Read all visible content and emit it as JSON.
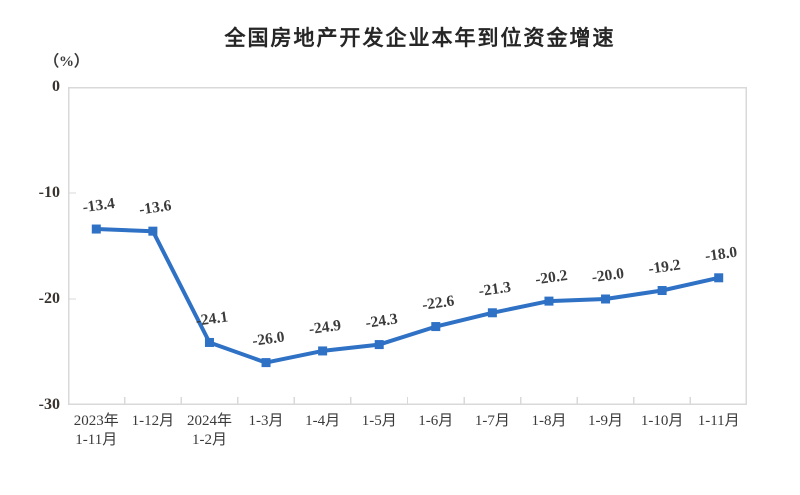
{
  "header": {
    "title": "全国房地产开发企业本年到位资金增速"
  },
  "chart_data": {
    "type": "line",
    "title": "全国房地产开发企业本年到位资金增速",
    "unit_label": "（%）",
    "categories": [
      "2023年\n1-11月",
      "1-12月",
      "2024年\n1-2月",
      "1-3月",
      "1-4月",
      "1-5月",
      "1-6月",
      "1-7月",
      "1-8月",
      "1-9月",
      "1-10月",
      "1-11月"
    ],
    "values": [
      -13.4,
      -13.6,
      -24.1,
      -26.0,
      -24.9,
      -24.3,
      -22.6,
      -21.3,
      -20.2,
      -20.0,
      -19.2,
      -18.0
    ],
    "data_labels": [
      "-13.4",
      "-13.6",
      "-24.1",
      "-26.0",
      "-24.9",
      "-24.3",
      "-22.6",
      "-21.3",
      "-20.2",
      "-20.0",
      "-19.2",
      "-18.0"
    ],
    "series_name": "本年到位资金增速",
    "y_ticks": [
      0,
      -10,
      -20,
      -30
    ],
    "y_tick_labels": [
      "0",
      "-10",
      "-20",
      "-30"
    ],
    "ylim": [
      -30,
      0
    ],
    "grid": false,
    "legend": "none",
    "marker": "square",
    "colors": {
      "line": "#2e71c5",
      "marker": "#2e71c5",
      "data_label": "#3b3b3b",
      "axis_border": "#d9d9d9",
      "tick_mark": "#d9d9d9",
      "tick_label": "#38332f",
      "title": "#262626",
      "background": "#ffffff"
    }
  }
}
